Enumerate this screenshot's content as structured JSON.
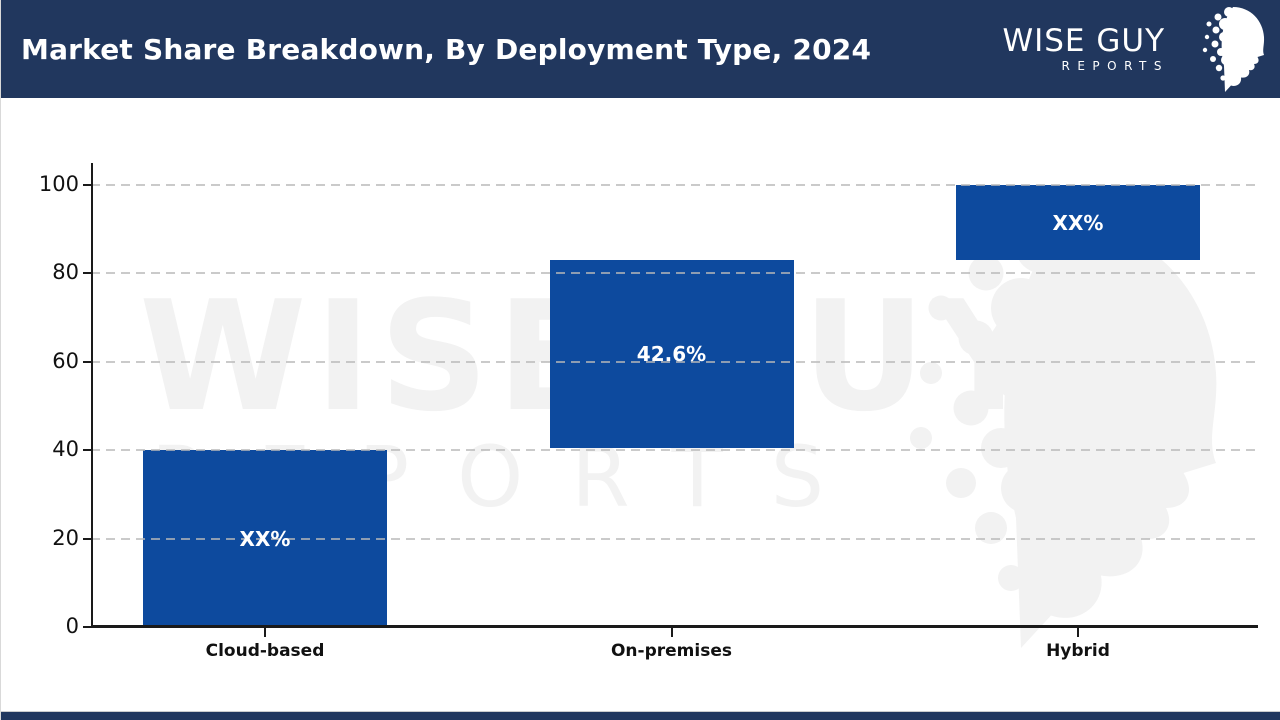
{
  "header": {
    "title": "Market Share Breakdown, By Deployment Type, 2024",
    "bg_color": "#21375e",
    "logo": {
      "line1": "WISE GUY",
      "line2": "REPORTS"
    }
  },
  "watermark": {
    "line1": "WISE GUY",
    "line2": "REPORTS"
  },
  "chart_data": {
    "type": "bar",
    "subtype": "waterfall",
    "title": "Market Share Breakdown, By Deployment Type, 2024",
    "categories": [
      "Cloud-based",
      "On-premises",
      "Hybrid"
    ],
    "segments": [
      {
        "category": "Cloud-based",
        "start": 0,
        "end": 40,
        "value_label": "XX%"
      },
      {
        "category": "On-premises",
        "start": 40.4,
        "end": 83,
        "value_label": "42.6%"
      },
      {
        "category": "Hybrid",
        "start": 83,
        "end": 100,
        "value_label": "XX%"
      }
    ],
    "ylim": [
      0,
      100
    ],
    "yticks": [
      0,
      20,
      40,
      60,
      80,
      100
    ],
    "xlabel": "",
    "ylabel": "",
    "grid": "dashed-horizontal",
    "legend": "none",
    "bar_color": "#0d4a9e",
    "bar_label_color": "#ffffff",
    "axis_color": "#1a1a1a"
  }
}
